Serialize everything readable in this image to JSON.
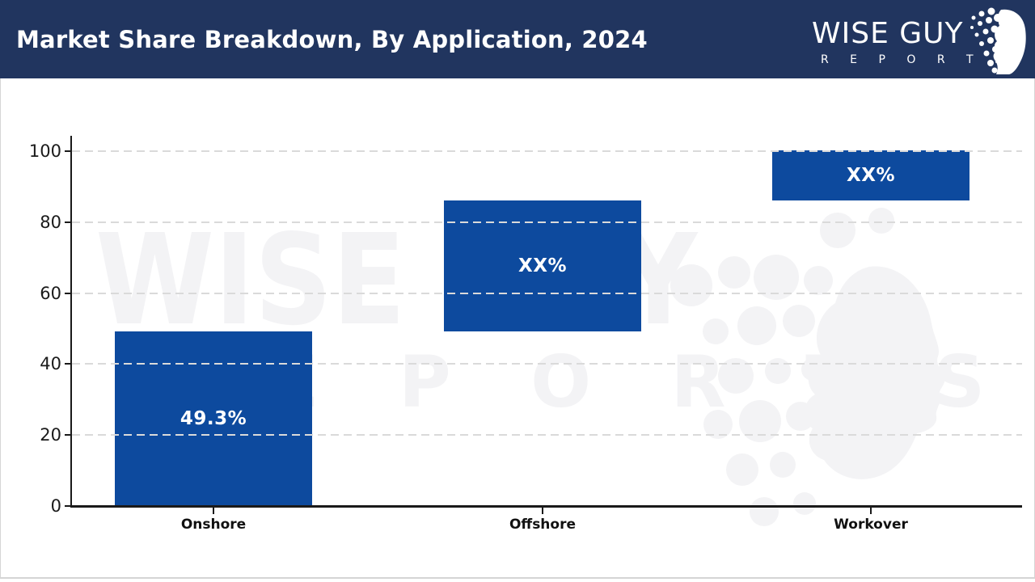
{
  "header": {
    "title": "Market Share Breakdown, By Application, 2024",
    "logo": {
      "line1": "WISE GUY",
      "line2": "R E P O R T S"
    },
    "bg_color": "#21355f"
  },
  "watermark": {
    "line1": "WISE GUY",
    "line2": "R E P O R T S"
  },
  "chart_data": {
    "type": "bar",
    "subtype": "waterfall-floating-bars",
    "title": "Market Share Breakdown, By Application, 2024",
    "categories": [
      "Onshore",
      "Offshore",
      "Workover"
    ],
    "bars": [
      {
        "category": "Onshore",
        "from": 0,
        "to": 49.3,
        "label": "49.3%"
      },
      {
        "category": "Offshore",
        "from": 49.3,
        "to": 86.1,
        "label": "XX%"
      },
      {
        "category": "Workover",
        "from": 86.1,
        "to": 100.3,
        "label": "XX%"
      }
    ],
    "ylim": [
      0,
      105
    ],
    "yticks": [
      0,
      20,
      40,
      60,
      80,
      100
    ],
    "grid": "horizontal-dashed",
    "legend": "none",
    "bar_color": "#0d4a9e",
    "value_label_color": "#ffffff",
    "axis_color": "#1a1a1a"
  }
}
